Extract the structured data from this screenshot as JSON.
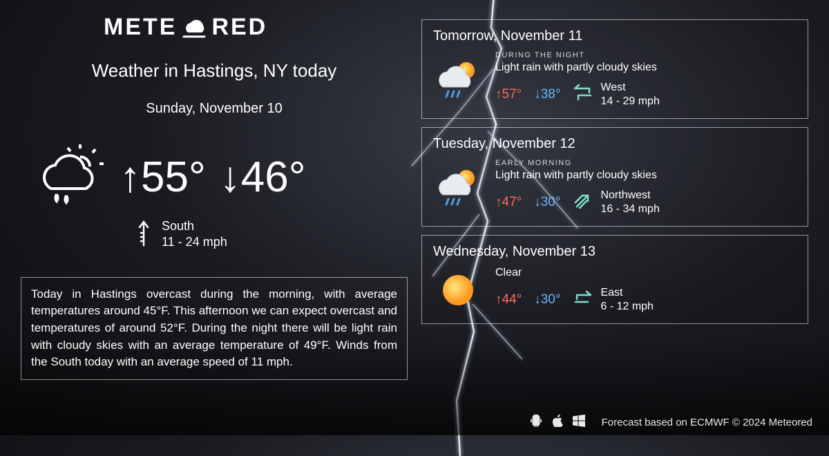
{
  "logo": {
    "left": "METE",
    "right": "RED"
  },
  "header": {
    "title": "Weather in Hastings, NY today",
    "date": "Sunday, November 10"
  },
  "today": {
    "high": "55°",
    "low": "46°",
    "wind_dir": "South",
    "wind_speed": "11 - 24 mph"
  },
  "summary": "Today in Hastings overcast during the morning, with average temperatures around 45°F. This afternoon we can expect overcast and temperatures of around 52°F. During the night there will be light rain with cloudy skies with an average temperature of 49°F. Winds from the South today with an average speed of 11 mph.",
  "forecast": [
    {
      "date": "Tomorrow, November 11",
      "period": "DURING THE NIGHT",
      "desc": "Light rain with partly cloudy skies",
      "high": "57°",
      "low": "38°",
      "wind_dir": "West",
      "wind_speed": "14 - 29 mph",
      "icon": "rain-sun",
      "wind_icon": "west"
    },
    {
      "date": "Tuesday, November 12",
      "period": "EARLY MORNING",
      "desc": "Light rain with partly cloudy skies",
      "high": "47°",
      "low": "30°",
      "wind_dir": "Northwest",
      "wind_speed": "16 - 34 mph",
      "icon": "rain-sun",
      "wind_icon": "nw"
    },
    {
      "date": "Wednesday, November 13",
      "period": "",
      "desc": "Clear",
      "high": "44°",
      "low": "30°",
      "wind_dir": "East",
      "wind_speed": "6 - 12 mph",
      "icon": "sun",
      "wind_icon": "east"
    }
  ],
  "footer": {
    "text": "Forecast based on ECMWF © 2024 Meteored"
  },
  "colors": {
    "high": "#ff6b5b",
    "low": "#6bb6ff",
    "wind_icon": "#7de0d0",
    "text": "#ffffff",
    "border": "rgba(255,255,255,0.55)"
  }
}
